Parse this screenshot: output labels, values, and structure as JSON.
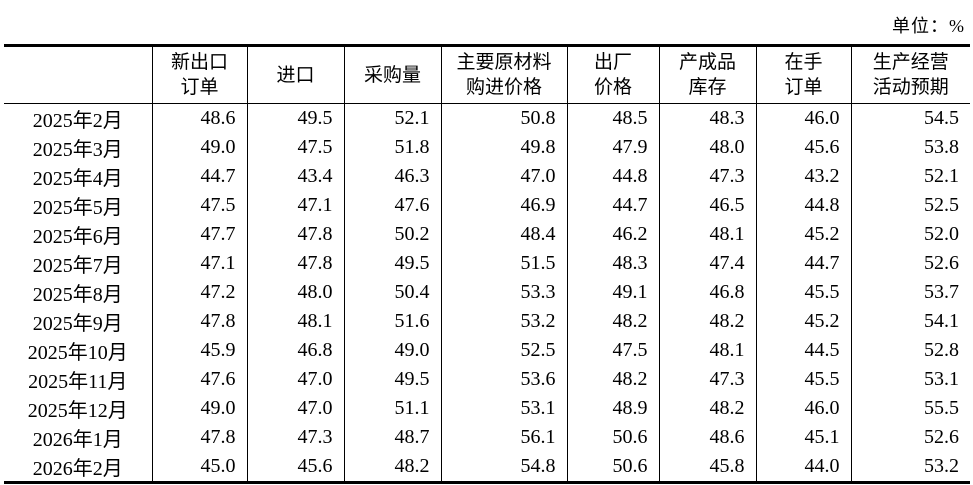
{
  "unit_label": "单位：%",
  "colors": {
    "background": "#ffffff",
    "text": "#000000",
    "border": "#000000"
  },
  "table": {
    "corner_label": "",
    "columns": [
      {
        "key": "new-export-orders",
        "lines": [
          "新出口",
          "订单"
        ]
      },
      {
        "key": "imports",
        "lines": [
          "进口"
        ]
      },
      {
        "key": "purchasing-volume",
        "lines": [
          "采购量"
        ]
      },
      {
        "key": "main-raw-material-prices",
        "lines": [
          "主要原材料",
          "购进价格"
        ]
      },
      {
        "key": "ex-factory-prices",
        "lines": [
          "出厂",
          "价格"
        ]
      },
      {
        "key": "finished-goods-inventory",
        "lines": [
          "产成品",
          "库存"
        ]
      },
      {
        "key": "orders-on-hand",
        "lines": [
          "在手",
          "订单"
        ]
      },
      {
        "key": "business-expectations",
        "lines": [
          "生产经营",
          "活动预期"
        ]
      }
    ],
    "rows": [
      {
        "label": "2025年2月",
        "values": [
          "48.6",
          "49.5",
          "52.1",
          "50.8",
          "48.5",
          "48.3",
          "46.0",
          "54.5"
        ]
      },
      {
        "label": "2025年3月",
        "values": [
          "49.0",
          "47.5",
          "51.8",
          "49.8",
          "47.9",
          "48.0",
          "45.6",
          "53.8"
        ]
      },
      {
        "label": "2025年4月",
        "values": [
          "44.7",
          "43.4",
          "46.3",
          "47.0",
          "44.8",
          "47.3",
          "43.2",
          "52.1"
        ]
      },
      {
        "label": "2025年5月",
        "values": [
          "47.5",
          "47.1",
          "47.6",
          "46.9",
          "44.7",
          "46.5",
          "44.8",
          "52.5"
        ]
      },
      {
        "label": "2025年6月",
        "values": [
          "47.7",
          "47.8",
          "50.2",
          "48.4",
          "46.2",
          "48.1",
          "45.2",
          "52.0"
        ]
      },
      {
        "label": "2025年7月",
        "values": [
          "47.1",
          "47.8",
          "49.5",
          "51.5",
          "48.3",
          "47.4",
          "44.7",
          "52.6"
        ]
      },
      {
        "label": "2025年8月",
        "values": [
          "47.2",
          "48.0",
          "50.4",
          "53.3",
          "49.1",
          "46.8",
          "45.5",
          "53.7"
        ]
      },
      {
        "label": "2025年9月",
        "values": [
          "47.8",
          "48.1",
          "51.6",
          "53.2",
          "48.2",
          "48.2",
          "45.2",
          "54.1"
        ]
      },
      {
        "label": "2025年10月",
        "values": [
          "45.9",
          "46.8",
          "49.0",
          "52.5",
          "47.5",
          "48.1",
          "44.5",
          "52.8"
        ]
      },
      {
        "label": "2025年11月",
        "values": [
          "47.6",
          "47.0",
          "49.5",
          "53.6",
          "48.2",
          "47.3",
          "45.5",
          "53.1"
        ]
      },
      {
        "label": "2025年12月",
        "values": [
          "49.0",
          "47.0",
          "51.1",
          "53.1",
          "48.9",
          "48.2",
          "46.0",
          "55.5"
        ]
      },
      {
        "label": "2026年1月",
        "values": [
          "47.8",
          "47.3",
          "48.7",
          "56.1",
          "50.6",
          "48.6",
          "45.1",
          "52.6"
        ]
      },
      {
        "label": "2026年2月",
        "values": [
          "45.0",
          "45.6",
          "48.2",
          "54.8",
          "50.6",
          "45.8",
          "44.0",
          "53.2"
        ]
      }
    ]
  },
  "chart_data": {
    "type": "table",
    "title": "",
    "unit": "%",
    "columns": [
      "新出口订单",
      "进口",
      "采购量",
      "主要原材料购进价格",
      "出厂价格",
      "产成品库存",
      "在手订单",
      "生产经营活动预期"
    ],
    "row_labels": [
      "2025年2月",
      "2025年3月",
      "2025年4月",
      "2025年5月",
      "2025年6月",
      "2025年7月",
      "2025年8月",
      "2025年9月",
      "2025年10月",
      "2025年11月",
      "2025年12月",
      "2026年1月",
      "2026年2月"
    ],
    "rows": [
      [
        48.6,
        49.5,
        52.1,
        50.8,
        48.5,
        48.3,
        46.0,
        54.5
      ],
      [
        49.0,
        47.5,
        51.8,
        49.8,
        47.9,
        48.0,
        45.6,
        53.8
      ],
      [
        44.7,
        43.4,
        46.3,
        47.0,
        44.8,
        47.3,
        43.2,
        52.1
      ],
      [
        47.5,
        47.1,
        47.6,
        46.9,
        44.7,
        46.5,
        44.8,
        52.5
      ],
      [
        47.7,
        47.8,
        50.2,
        48.4,
        46.2,
        48.1,
        45.2,
        52.0
      ],
      [
        47.1,
        47.8,
        49.5,
        51.5,
        48.3,
        47.4,
        44.7,
        52.6
      ],
      [
        47.2,
        48.0,
        50.4,
        53.3,
        49.1,
        46.8,
        45.5,
        53.7
      ],
      [
        47.8,
        48.1,
        51.6,
        53.2,
        48.2,
        48.2,
        45.2,
        54.1
      ],
      [
        45.9,
        46.8,
        49.0,
        52.5,
        47.5,
        48.1,
        44.5,
        52.8
      ],
      [
        47.6,
        47.0,
        49.5,
        53.6,
        48.2,
        47.3,
        45.5,
        53.1
      ],
      [
        49.0,
        47.0,
        51.1,
        53.1,
        48.9,
        48.2,
        46.0,
        55.5
      ],
      [
        47.8,
        47.3,
        48.7,
        56.1,
        50.6,
        48.6,
        45.1,
        52.6
      ],
      [
        45.0,
        45.6,
        48.2,
        54.8,
        50.6,
        45.8,
        44.0,
        53.2
      ]
    ]
  }
}
